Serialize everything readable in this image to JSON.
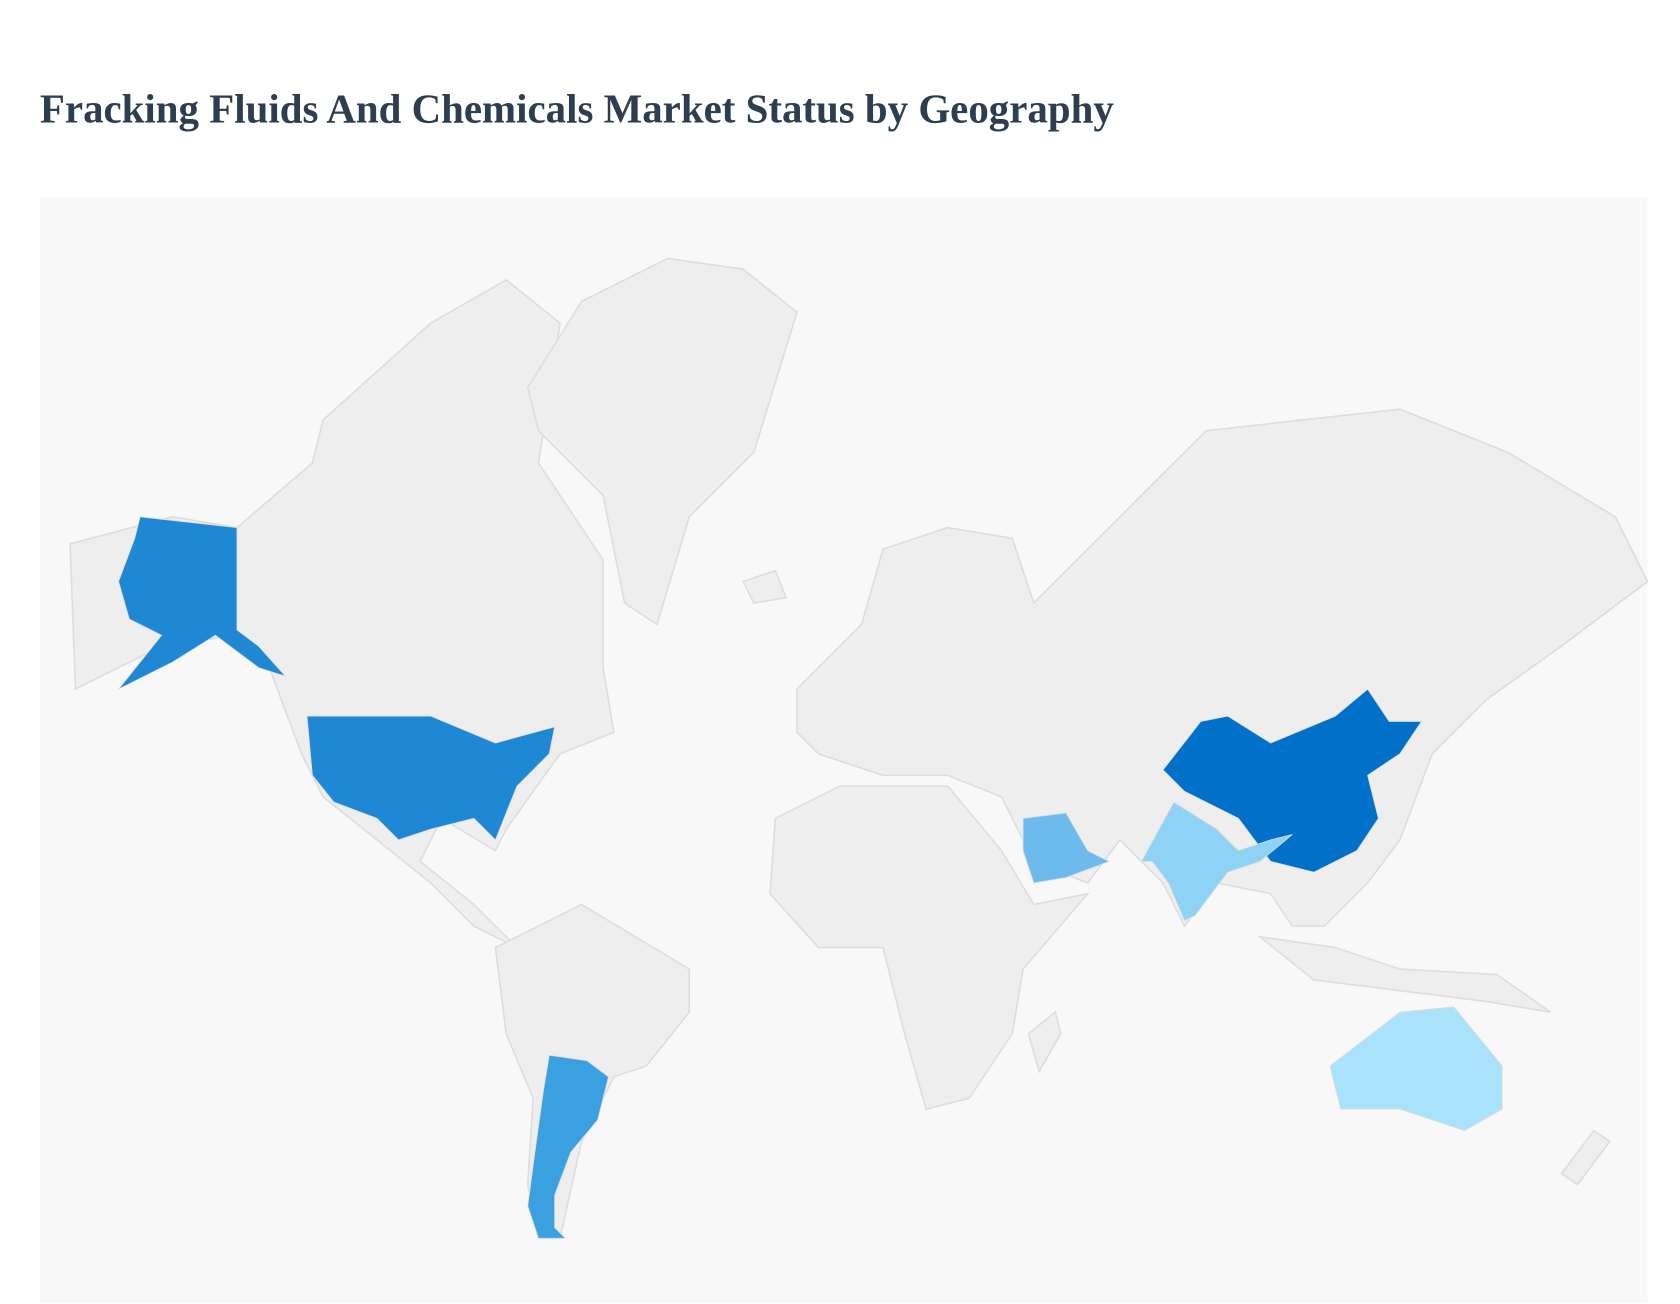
{
  "title": "Fracking Fluids And Chemicals Market Status by Geography",
  "map": {
    "regions": [
      {
        "color": "#1e88d4"
      },
      {
        "color": "#1e88d4"
      },
      {
        "color": "#0070c8"
      },
      {
        "color": "#8ed2f5"
      },
      {
        "color": "#6dbbec"
      },
      {
        "color": "#3ba0e0"
      },
      {
        "color": "#a9e3fb"
      }
    ]
  }
}
